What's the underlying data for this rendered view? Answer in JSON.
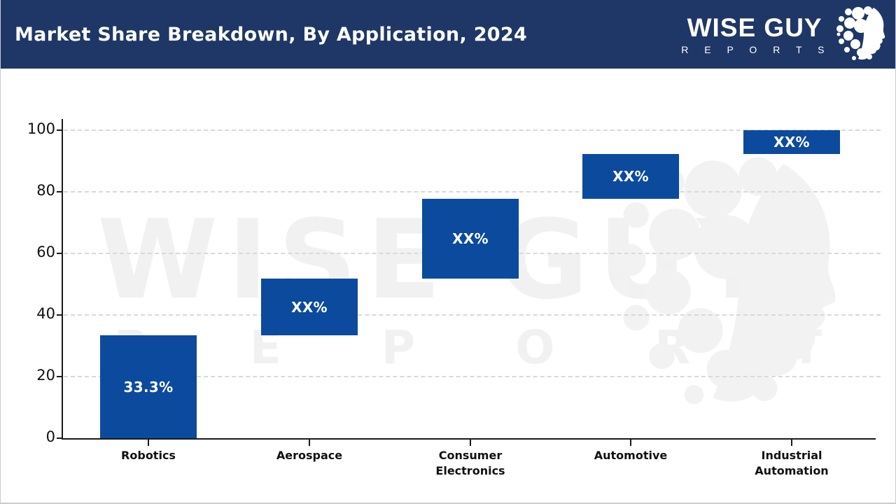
{
  "header": {
    "title": "Market Share Breakdown, By Application, 2024",
    "logo": {
      "wordmark": "WISE GUY",
      "subtext": "R E P O R T S"
    }
  },
  "watermark": {
    "line1": "WISE GUY",
    "line2": "R E P O R T S"
  },
  "colors": {
    "header_bg": "#1F3766",
    "bar": "#0C4A9E",
    "grid": "#D9D9D9",
    "axis": "#1A1A1A",
    "bar_label_text": "#FFFFFF",
    "tick_text": "#111111",
    "watermark": "#F1F1F2"
  },
  "chart_data": {
    "type": "bar",
    "subtype": "waterfall",
    "title": "Market Share Breakdown, By Application, 2024",
    "xlabel": "",
    "ylabel": "",
    "categories": [
      "Robotics",
      "Aerospace",
      "Consumer Electronics",
      "Automotive",
      "Industrial Automation"
    ],
    "segments": [
      {
        "category": "Robotics",
        "label": "33.3%",
        "start": 0,
        "end": 33.3,
        "value": 33.3
      },
      {
        "category": "Aerospace",
        "label": "XX%",
        "start": 33.3,
        "end": 51.8,
        "value": 18.5
      },
      {
        "category": "Consumer Electronics",
        "label": "XX%",
        "start": 51.8,
        "end": 77.7,
        "value": 25.9
      },
      {
        "category": "Automotive",
        "label": "XX%",
        "start": 77.7,
        "end": 92.3,
        "value": 14.6
      },
      {
        "category": "Industrial Automation",
        "label": "XX%",
        "start": 92.3,
        "end": 100,
        "value": 7.7
      }
    ],
    "yticks": [
      0,
      20,
      40,
      60,
      80,
      100
    ],
    "ylim": [
      0,
      104
    ],
    "grid": "horizontal-dashed",
    "legend": "none",
    "bar_color": "#0C4A9E"
  }
}
